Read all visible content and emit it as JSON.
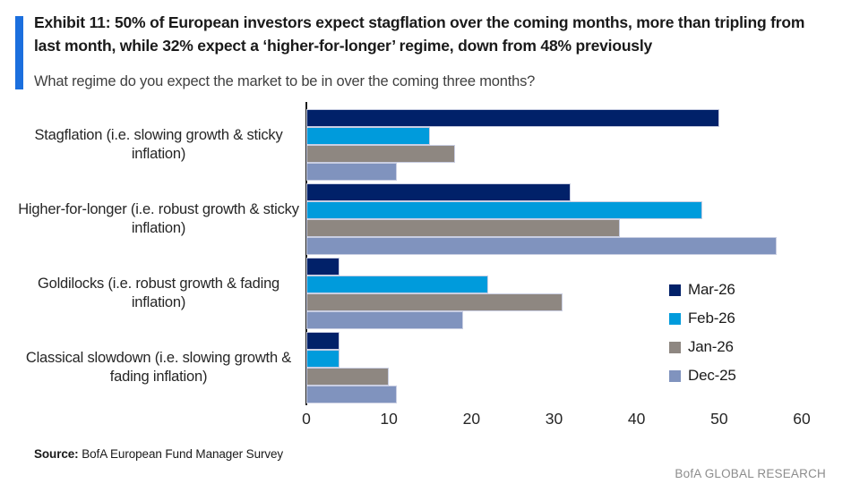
{
  "header": {
    "exhibit_title": "Exhibit 11: 50% of European investors expect stagflation over the coming months, more than tripling from last month, while 32% expect a ‘higher-for-longer’ regime, down from 48% previously",
    "subtitle": "What regime do you expect the market to be in over the coming three months?"
  },
  "chart_data": {
    "type": "bar",
    "orientation": "horizontal",
    "title": "What regime do you expect the market to be in over the coming three months?",
    "categories": [
      "Stagflation (i.e. slowing growth & sticky inflation)",
      "Higher-for-longer (i.e. robust growth & sticky inflation)",
      "Goldilocks (i.e. robust growth & fading inflation)",
      "Classical slowdown (i.e. slowing growth & fading inflation)"
    ],
    "series": [
      {
        "name": "Mar-26",
        "color": "#012169",
        "values": [
          50,
          32,
          4,
          4
        ]
      },
      {
        "name": "Feb-26",
        "color": "#009BDC",
        "values": [
          15,
          48,
          22,
          4
        ]
      },
      {
        "name": "Jan-26",
        "color": "#8E8781",
        "values": [
          18,
          38,
          31,
          10
        ]
      },
      {
        "name": "Dec-25",
        "color": "#8093BE",
        "values": [
          11,
          57,
          19,
          11
        ]
      }
    ],
    "xlabel": "",
    "ylabel": "",
    "xlim": [
      0,
      60
    ],
    "x_ticks": [
      0,
      10,
      20,
      30,
      40,
      50,
      60
    ],
    "grid": false,
    "legend_position": "middle-right",
    "unit": "percent"
  },
  "colors": {
    "accent_bar": "#1B6FDE",
    "axis": "#1a1a1a",
    "bar_border": "#c9cee2",
    "text_primary": "#1a1a1a",
    "text_secondary": "#3f3f3f",
    "brand_gray": "#8c8c8c"
  },
  "footer": {
    "source_label": "Source:",
    "source_text": "BofA European Fund Manager Survey",
    "brand": "BofA GLOBAL RESEARCH"
  }
}
